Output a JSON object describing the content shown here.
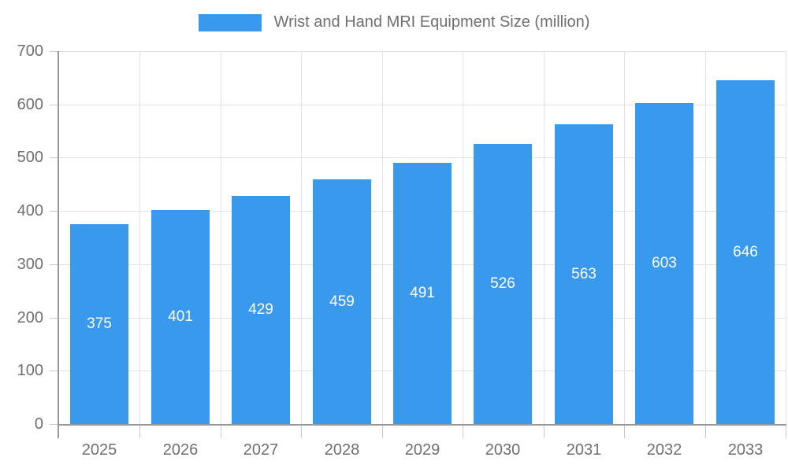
{
  "legend": {
    "label": "Wrist and Hand MRI Equipment Size (million)"
  },
  "chart_data": {
    "type": "bar",
    "title": "Wrist and Hand MRI Equipment Size (million)",
    "categories": [
      "2025",
      "2026",
      "2027",
      "2028",
      "2029",
      "2030",
      "2031",
      "2032",
      "2033"
    ],
    "values": [
      375,
      401,
      429,
      459,
      491,
      526,
      563,
      603,
      646
    ],
    "xlabel": "",
    "ylabel": "",
    "ylim": [
      0,
      700
    ],
    "yticks": [
      0,
      100,
      200,
      300,
      400,
      500,
      600,
      700
    ],
    "grid": true,
    "legend_position": "top-center",
    "bar_labels_inside": true,
    "colors": {
      "bar": "#3999EC",
      "bar_label": "#FFFFFF",
      "axis_text": "#6F6F6F",
      "grid_line": "#E2E2E2",
      "axis_line": "#999999",
      "tick_line": "#C8C8C8",
      "background": "#FFFFFF"
    }
  }
}
